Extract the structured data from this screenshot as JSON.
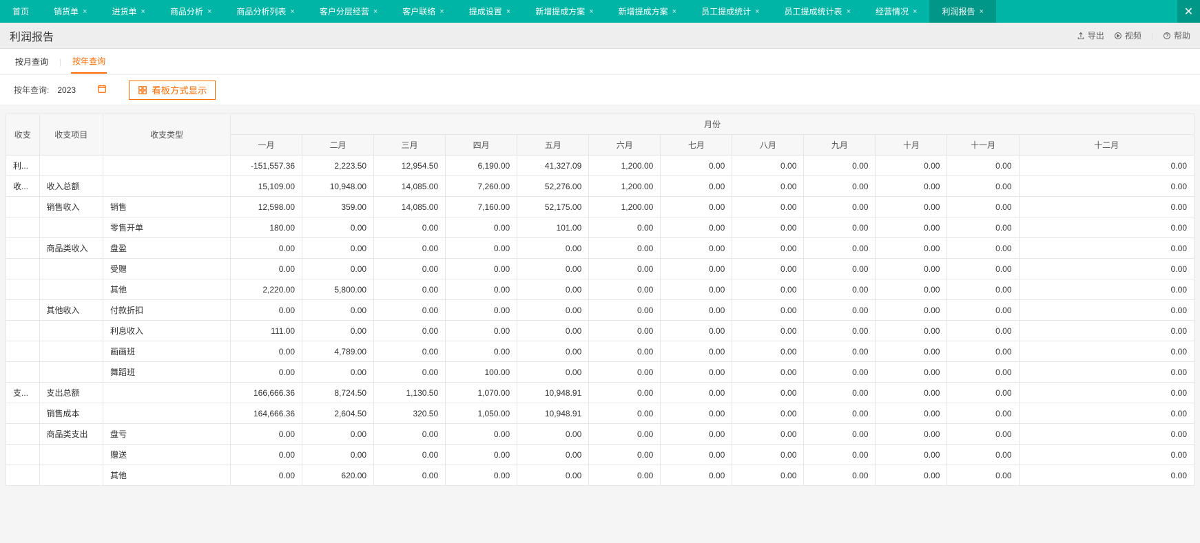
{
  "colors": {
    "brand": "#00b5a5",
    "brand_dark": "#009688",
    "accent": "#ff6a00",
    "border": "#e6e6e6",
    "head_bg": "#f7f7f7"
  },
  "tabs": [
    {
      "label": "首页",
      "closable": false
    },
    {
      "label": "销货单",
      "closable": true
    },
    {
      "label": "进货单",
      "closable": true
    },
    {
      "label": "商品分析",
      "closable": true
    },
    {
      "label": "商品分析列表",
      "closable": true
    },
    {
      "label": "客户分层经营",
      "closable": true
    },
    {
      "label": "客户联络",
      "closable": true
    },
    {
      "label": "提成设置",
      "closable": true
    },
    {
      "label": "新增提成方案",
      "closable": true
    },
    {
      "label": "新增提成方案",
      "closable": true
    },
    {
      "label": "员工提成统计",
      "closable": true
    },
    {
      "label": "员工提成统计表",
      "closable": true
    },
    {
      "label": "经营情况",
      "closable": true
    },
    {
      "label": "利润报告",
      "closable": true,
      "active": true
    }
  ],
  "page": {
    "title": "利润报告",
    "actions": {
      "export": "导出",
      "video": "视频",
      "help": "帮助"
    }
  },
  "subtabs": {
    "by_month": "按月查询",
    "by_year": "按年查询",
    "active": "by_year"
  },
  "filter": {
    "label": "按年查询:",
    "year": "2023",
    "board_button": "看板方式显示"
  },
  "table": {
    "header": {
      "cat": "收支",
      "item": "收支项目",
      "type": "收支类型",
      "month_group": "月份",
      "months": [
        "一月",
        "二月",
        "三月",
        "四月",
        "五月",
        "六月",
        "七月",
        "八月",
        "九月",
        "十月",
        "十一月",
        "十二月"
      ]
    },
    "rows": [
      {
        "cat": "利...",
        "item": "",
        "type": "",
        "vals": [
          "-151,557.36",
          "2,223.50",
          "12,954.50",
          "6,190.00",
          "41,327.09",
          "1,200.00",
          "0.00",
          "0.00",
          "0.00",
          "0.00",
          "0.00",
          "0.00"
        ]
      },
      {
        "cat": "收...",
        "item": "收入总额",
        "type": "",
        "vals": [
          "15,109.00",
          "10,948.00",
          "14,085.00",
          "7,260.00",
          "52,276.00",
          "1,200.00",
          "0.00",
          "0.00",
          "0.00",
          "0.00",
          "0.00",
          "0.00"
        ]
      },
      {
        "cat": "",
        "item": "销售收入",
        "type": "销售",
        "vals": [
          "12,598.00",
          "359.00",
          "14,085.00",
          "7,160.00",
          "52,175.00",
          "1,200.00",
          "0.00",
          "0.00",
          "0.00",
          "0.00",
          "0.00",
          "0.00"
        ]
      },
      {
        "cat": "",
        "item": "",
        "type": "零售开单",
        "vals": [
          "180.00",
          "0.00",
          "0.00",
          "0.00",
          "101.00",
          "0.00",
          "0.00",
          "0.00",
          "0.00",
          "0.00",
          "0.00",
          "0.00"
        ]
      },
      {
        "cat": "",
        "item": "商品类收入",
        "type": "盘盈",
        "vals": [
          "0.00",
          "0.00",
          "0.00",
          "0.00",
          "0.00",
          "0.00",
          "0.00",
          "0.00",
          "0.00",
          "0.00",
          "0.00",
          "0.00"
        ]
      },
      {
        "cat": "",
        "item": "",
        "type": "受赠",
        "vals": [
          "0.00",
          "0.00",
          "0.00",
          "0.00",
          "0.00",
          "0.00",
          "0.00",
          "0.00",
          "0.00",
          "0.00",
          "0.00",
          "0.00"
        ]
      },
      {
        "cat": "",
        "item": "",
        "type": "其他",
        "vals": [
          "2,220.00",
          "5,800.00",
          "0.00",
          "0.00",
          "0.00",
          "0.00",
          "0.00",
          "0.00",
          "0.00",
          "0.00",
          "0.00",
          "0.00"
        ]
      },
      {
        "cat": "",
        "item": "其他收入",
        "type": "付款折扣",
        "vals": [
          "0.00",
          "0.00",
          "0.00",
          "0.00",
          "0.00",
          "0.00",
          "0.00",
          "0.00",
          "0.00",
          "0.00",
          "0.00",
          "0.00"
        ]
      },
      {
        "cat": "",
        "item": "",
        "type": "利息收入",
        "vals": [
          "111.00",
          "0.00",
          "0.00",
          "0.00",
          "0.00",
          "0.00",
          "0.00",
          "0.00",
          "0.00",
          "0.00",
          "0.00",
          "0.00"
        ]
      },
      {
        "cat": "",
        "item": "",
        "type": "画画班",
        "vals": [
          "0.00",
          "4,789.00",
          "0.00",
          "0.00",
          "0.00",
          "0.00",
          "0.00",
          "0.00",
          "0.00",
          "0.00",
          "0.00",
          "0.00"
        ]
      },
      {
        "cat": "",
        "item": "",
        "type": "舞蹈班",
        "vals": [
          "0.00",
          "0.00",
          "0.00",
          "100.00",
          "0.00",
          "0.00",
          "0.00",
          "0.00",
          "0.00",
          "0.00",
          "0.00",
          "0.00"
        ]
      },
      {
        "cat": "支...",
        "item": "支出总额",
        "type": "",
        "vals": [
          "166,666.36",
          "8,724.50",
          "1,130.50",
          "1,070.00",
          "10,948.91",
          "0.00",
          "0.00",
          "0.00",
          "0.00",
          "0.00",
          "0.00",
          "0.00"
        ]
      },
      {
        "cat": "",
        "item": "销售成本",
        "type": "",
        "vals": [
          "164,666.36",
          "2,604.50",
          "320.50",
          "1,050.00",
          "10,948.91",
          "0.00",
          "0.00",
          "0.00",
          "0.00",
          "0.00",
          "0.00",
          "0.00"
        ]
      },
      {
        "cat": "",
        "item": "商品类支出",
        "type": "盘亏",
        "vals": [
          "0.00",
          "0.00",
          "0.00",
          "0.00",
          "0.00",
          "0.00",
          "0.00",
          "0.00",
          "0.00",
          "0.00",
          "0.00",
          "0.00"
        ]
      },
      {
        "cat": "",
        "item": "",
        "type": "赠送",
        "vals": [
          "0.00",
          "0.00",
          "0.00",
          "0.00",
          "0.00",
          "0.00",
          "0.00",
          "0.00",
          "0.00",
          "0.00",
          "0.00",
          "0.00"
        ]
      },
      {
        "cat": "",
        "item": "",
        "type": "其他",
        "vals": [
          "0.00",
          "620.00",
          "0.00",
          "0.00",
          "0.00",
          "0.00",
          "0.00",
          "0.00",
          "0.00",
          "0.00",
          "0.00",
          "0.00"
        ]
      }
    ]
  }
}
